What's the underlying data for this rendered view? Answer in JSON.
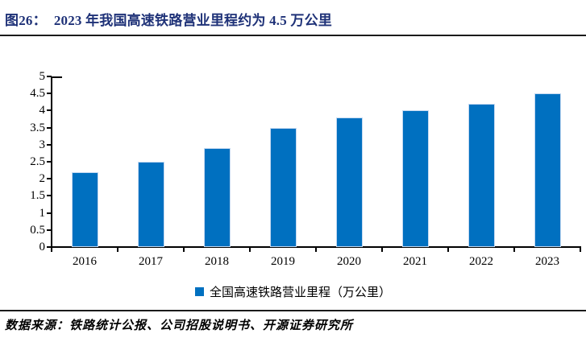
{
  "figure": {
    "label_prefix": "图26：",
    "title": "2023 年我国高速铁路营业里程约为 4.5 万公里",
    "title_color": "#1F3278"
  },
  "chart_data": {
    "type": "bar",
    "title": "2023 年我国高速铁路营业里程约为 4.5 万公里",
    "categories": [
      "2016",
      "2017",
      "2018",
      "2019",
      "2020",
      "2021",
      "2022",
      "2023"
    ],
    "values": [
      2.2,
      2.5,
      2.9,
      3.5,
      3.8,
      4.0,
      4.2,
      4.5
    ],
    "series_name": "全国高速铁路营业里程（万公里）",
    "unit": "万公里",
    "ylim": [
      0,
      5
    ],
    "ytick_step": 0.5,
    "grid": false,
    "legend_position": "bottom",
    "bar_color": "#0070C0",
    "bar_border_color": "#C5D9F1",
    "axis_color": "#000000"
  },
  "legend": {
    "label": "全国高速铁路营业里程（万公里）"
  },
  "source": {
    "text": "数据来源：铁路统计公报、公司招股说明书、开源证券研究所"
  }
}
